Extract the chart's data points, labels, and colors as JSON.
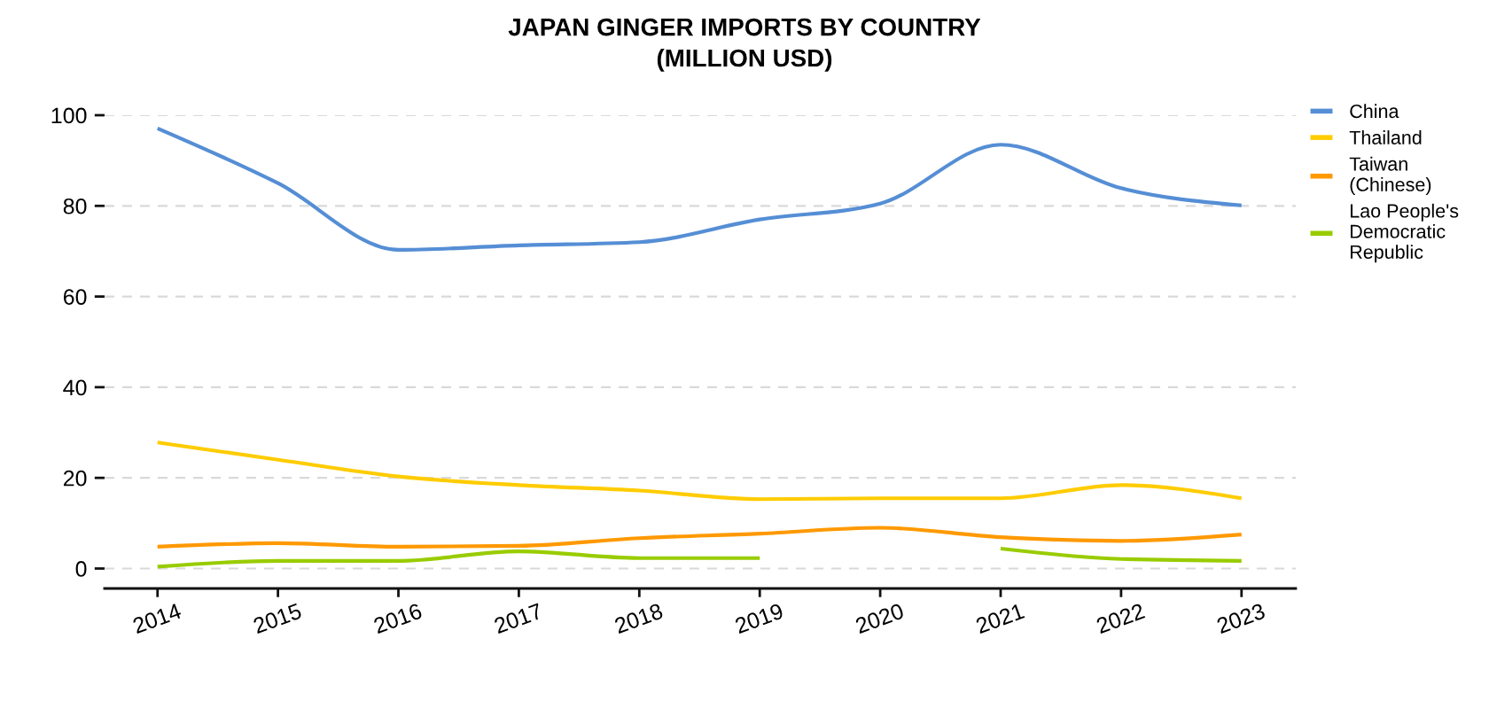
{
  "chart_data": {
    "type": "line",
    "title": "JAPAN GINGER IMPORTS BY COUNTRY\n(MILLION USD)",
    "categories": [
      "2014",
      "2015",
      "2016",
      "2017",
      "2018",
      "2019",
      "2020",
      "2021",
      "2022",
      "2023"
    ],
    "series": [
      {
        "name": "China",
        "color": "#558ed5",
        "values": [
          97.1,
          85.0,
          70.3,
          71.3,
          72.0,
          77.0,
          80.5,
          93.5,
          83.9,
          80.1
        ]
      },
      {
        "name": "Thailand",
        "color": "#ffcc00",
        "values": [
          27.8,
          24.0,
          20.3,
          18.4,
          17.2,
          15.3,
          15.5,
          15.5,
          18.4,
          15.5
        ]
      },
      {
        "name": "Taiwan (Chinese)",
        "color": "#ff9900",
        "values": [
          4.8,
          5.6,
          4.8,
          5.0,
          6.7,
          7.7,
          9.0,
          6.9,
          6.1,
          7.5
        ]
      },
      {
        "name": "Lao People's Democratic Republic",
        "color": "#99cc00",
        "values": [
          0.4,
          1.7,
          1.7,
          3.8,
          2.3,
          2.3,
          null,
          4.4,
          2.1,
          1.7
        ]
      }
    ],
    "ylim": [
      -4.4,
      100
    ],
    "yticks": [
      0,
      20,
      40,
      60,
      80,
      100
    ],
    "grid": "y",
    "legend": "right"
  }
}
